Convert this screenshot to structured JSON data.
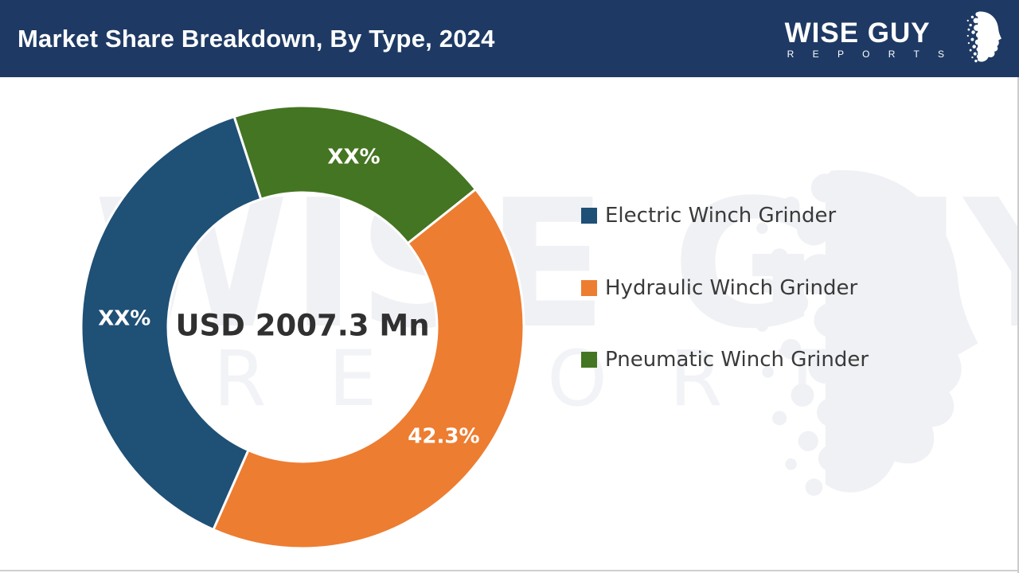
{
  "header": {
    "title": "Market Share Breakdown, By Type, 2024",
    "bg_color": "#1e3a64",
    "logo": {
      "line1": "WISE GUY",
      "line2": "R E P O R T S"
    }
  },
  "watermark": {
    "line1": "WISE GUY",
    "line2": "REPORTS"
  },
  "chart_data": {
    "type": "pie",
    "subtype": "donut",
    "title": "Market Share Breakdown, By Type, 2024",
    "center_label": "USD 2007.3 Mn",
    "start_angle_deg": -18,
    "slices": [
      {
        "name": "Pneumatic Winch Grinder",
        "label": "XX%",
        "value_pct": 19.3,
        "color": "#447522"
      },
      {
        "name": "Hydraulic Winch Grinder",
        "label": "42.3%",
        "value_pct": 42.3,
        "color": "#ed7d31"
      },
      {
        "name": "Electric Winch Grinder",
        "label": "XX%",
        "value_pct": 38.4,
        "color": "#1f5076"
      }
    ],
    "legend_position": "right",
    "legend": [
      {
        "label": "Electric Winch Grinder",
        "color": "#1f5076"
      },
      {
        "label": "Hydraulic Winch Grinder",
        "color": "#ed7d31"
      },
      {
        "label": "Pneumatic Winch Grinder",
        "color": "#447522"
      }
    ]
  },
  "frame": {
    "border_color": "#cccccc"
  }
}
